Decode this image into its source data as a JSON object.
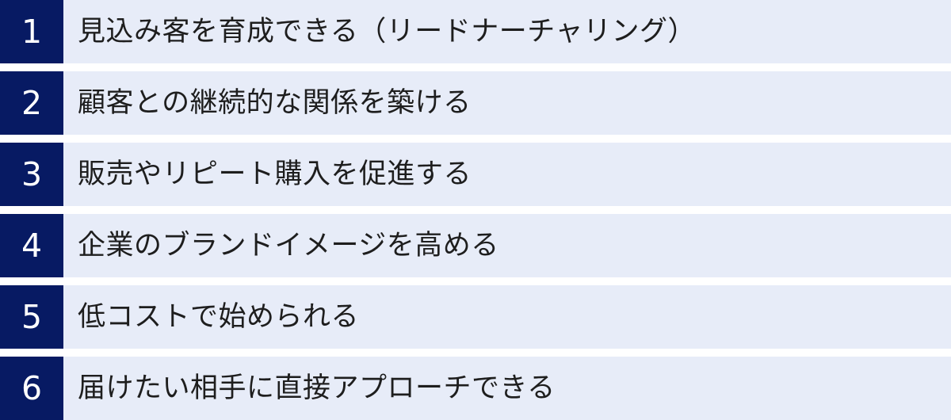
{
  "list": {
    "items": [
      {
        "number": "1",
        "label": "見込み客を育成できる（リードナーチャリング）"
      },
      {
        "number": "2",
        "label": "顧客との継続的な関係を築ける"
      },
      {
        "number": "3",
        "label": "販売やリピート購入を促進する"
      },
      {
        "number": "4",
        "label": "企業のブランドイメージを高める"
      },
      {
        "number": "5",
        "label": "低コストで始められる"
      },
      {
        "number": "6",
        "label": "届けたい相手に直接アプローチできる"
      }
    ],
    "colors": {
      "number_box_bg": "#071a63",
      "number_text": "#ffffff",
      "row_bg": "#e7ecf8",
      "label_text": "#1e1e1e",
      "gap": "#ffffff"
    }
  }
}
